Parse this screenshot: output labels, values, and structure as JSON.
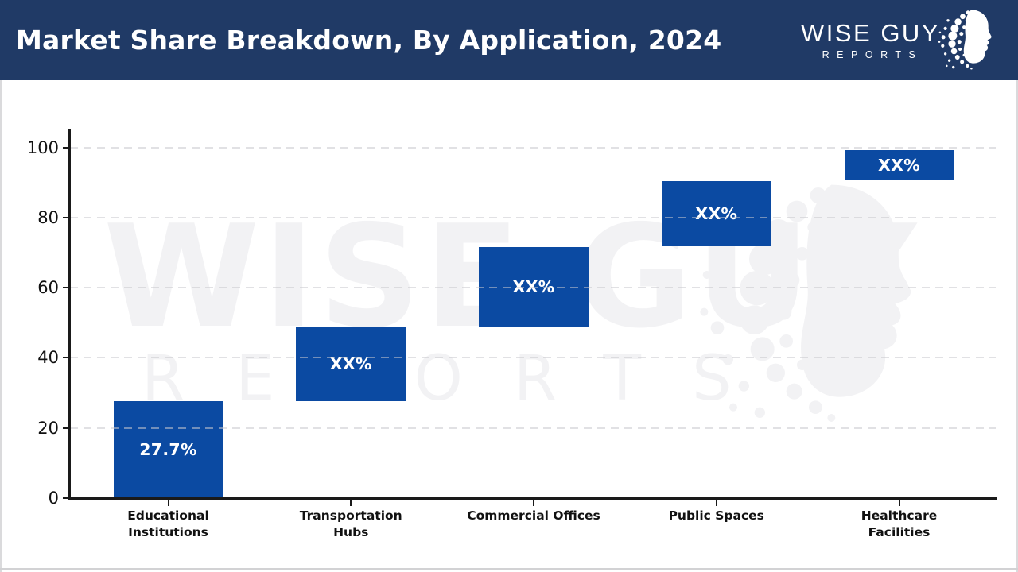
{
  "header": {
    "title": "Market Share Breakdown, By Application, 2024",
    "bg_color": "#203a66",
    "logo": {
      "wordmark": "WISE GUY",
      "sub": "REPORTS"
    }
  },
  "watermark": {
    "line1": "WISE GUY",
    "line2": "REPORTS"
  },
  "chart_data": {
    "type": "bar",
    "subtype": "waterfall (floating stacked segments, values masked except first)",
    "title": "Market Share Breakdown, By Application, 2024",
    "categories": [
      "Educational Institutions",
      "Transportation Hubs",
      "Commercial Offices",
      "Public Spaces",
      "Healthcare Facilities"
    ],
    "category_display": [
      "Educational\nInstitutions",
      "Transportation\nHubs",
      "Commercial Offices",
      "Public Spaces",
      "Healthcare\nFacilities"
    ],
    "segments": [
      {
        "category": "Educational Institutions",
        "label": "27.7%",
        "start": 0,
        "end": 27.7
      },
      {
        "category": "Transportation Hubs",
        "label": "XX%",
        "start": 27.7,
        "end": 48.9
      },
      {
        "category": "Commercial Offices",
        "label": "XX%",
        "start": 48.9,
        "end": 71.5
      },
      {
        "category": "Public Spaces",
        "label": "XX%",
        "start": 71.7,
        "end": 90.3
      },
      {
        "category": "Healthcare Facilities",
        "label": "XX%",
        "start": 90.5,
        "end": 99.3
      }
    ],
    "xlabel": "",
    "ylabel": "",
    "yticks": [
      0,
      20,
      40,
      60,
      80,
      100
    ],
    "ylim": [
      0,
      104.5
    ],
    "grid": "horizontal dashed, drawn over bars",
    "legend": "none",
    "bar_color": "#0b4aa2",
    "bar_label_color": "#ffffff"
  }
}
